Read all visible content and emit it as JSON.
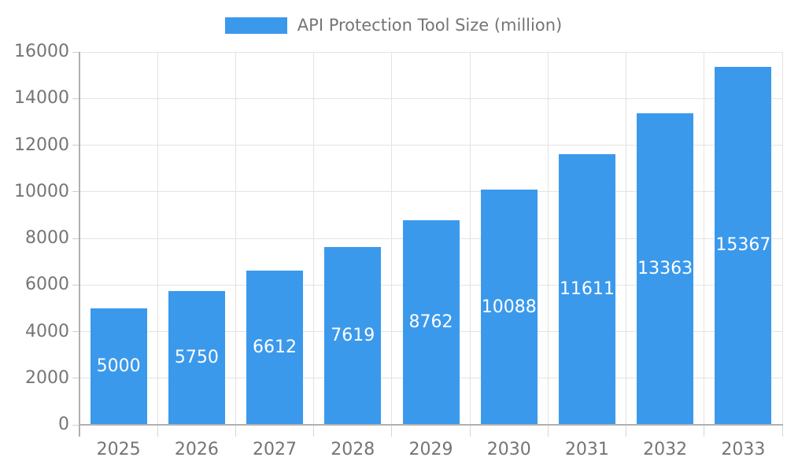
{
  "legend": {
    "label": "API Protection Tool Size (million)"
  },
  "colors": {
    "bar": "#3B99EC",
    "axis_line": "#b0b0b0",
    "gridline": "#e3e3e3",
    "axis_text": "#757575",
    "value_text": "#ffffff"
  },
  "chart_data": {
    "type": "bar",
    "title": "API Protection Tool Size (million)",
    "categories": [
      "2025",
      "2026",
      "2027",
      "2028",
      "2029",
      "2030",
      "2031",
      "2032",
      "2033"
    ],
    "values": [
      5000,
      5750,
      6612,
      7619,
      8762,
      10088,
      11611,
      13363,
      15367
    ],
    "xlabel": "",
    "ylabel": "",
    "ylim": [
      0,
      16000
    ],
    "yticks": [
      0,
      2000,
      4000,
      6000,
      8000,
      10000,
      12000,
      14000,
      16000
    ],
    "grid": true,
    "legend_position": "top-center",
    "bar_labels": "inside-white-centered"
  }
}
